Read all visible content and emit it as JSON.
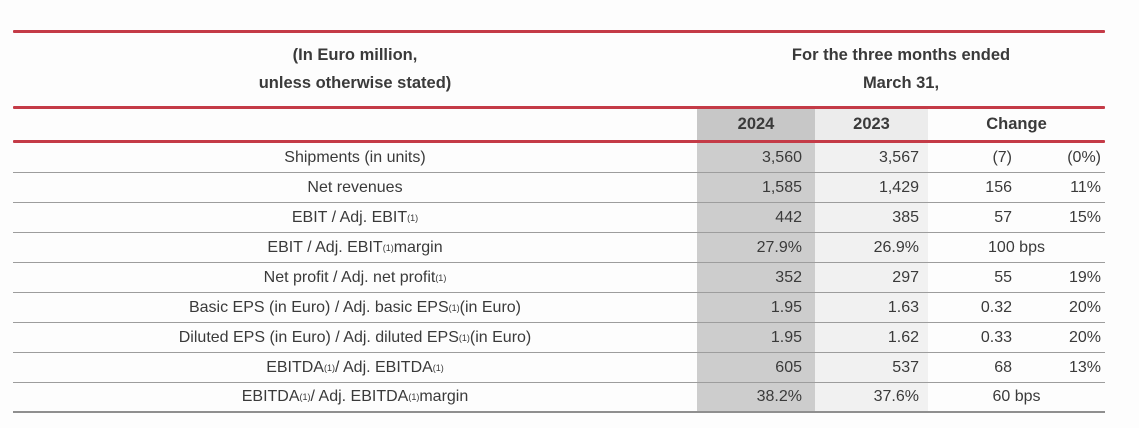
{
  "colors": {
    "accent_red": "#c43b47",
    "col_2024_bg": "#cdcdcd",
    "col_2023_bg": "#f1f1f1",
    "divider_gray": "#9d9d9d",
    "text": "#3a3a3a"
  },
  "table": {
    "unit_note_line1": "(In Euro million,",
    "unit_note_line2": "unless otherwise stated)",
    "period_line1": "For the three months ended",
    "period_line2": "March 31,",
    "columns": {
      "year_current": "2024",
      "year_prior": "2023",
      "change": "Change"
    },
    "rows": [
      {
        "label": "Shipments (in units)",
        "y2024": "3,560",
        "y2023": "3,567",
        "chg": "(7)",
        "pct": "(0%)"
      },
      {
        "label": "Net revenues",
        "y2024": "1,585",
        "y2023": "1,429",
        "chg": "156",
        "pct": "11%"
      },
      {
        "label": "EBIT / Adj. EBIT^(1)",
        "y2024": "442",
        "y2023": "385",
        "chg": "57",
        "pct": "15%"
      },
      {
        "label": "EBIT / Adj. EBIT^(1) margin",
        "y2024": "27.9%",
        "y2023": "26.9%",
        "chg": "100 bps",
        "pct": null
      },
      {
        "label": "Net profit / Adj. net profit^(1)",
        "y2024": "352",
        "y2023": "297",
        "chg": "55",
        "pct": "19%"
      },
      {
        "label": "Basic EPS (in Euro) / Adj. basic EPS^(1) (in Euro)",
        "y2024": "1.95",
        "y2023": "1.63",
        "chg": "0.32",
        "pct": "20%"
      },
      {
        "label": "Diluted EPS (in Euro) / Adj. diluted EPS^(1) (in Euro)",
        "y2024": "1.95",
        "y2023": "1.62",
        "chg": "0.33",
        "pct": "20%"
      },
      {
        "label": "EBITDA^(1) / Adj. EBITDA^(1)",
        "y2024": "605",
        "y2023": "537",
        "chg": "68",
        "pct": "13%"
      },
      {
        "label": "EBITDA^(1) / Adj. EBITDA^(1) margin",
        "y2024": "38.2%",
        "y2023": "37.6%",
        "chg": "60 bps",
        "pct": null
      }
    ]
  }
}
